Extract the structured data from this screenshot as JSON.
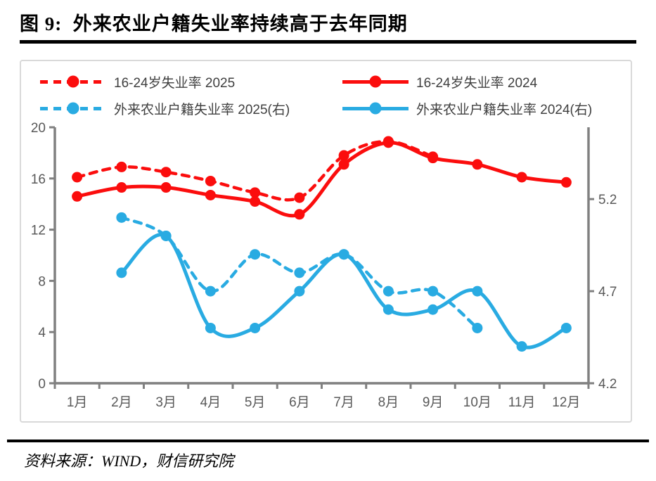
{
  "title": "图 9:  外来农业户籍失业率持续高于去年同期",
  "source": "资料来源：WIND，财信研究院",
  "colors": {
    "red": "#FB0D0D",
    "blue": "#29ABE2",
    "axis_line": "#808080",
    "axis_text": "#595959",
    "legend_text": "#404040",
    "card_border": "#d9d9d9",
    "rule": "#000000"
  },
  "chart_data": {
    "type": "line",
    "categories": [
      "1月",
      "2月",
      "3月",
      "4月",
      "5月",
      "6月",
      "7月",
      "8月",
      "9月",
      "10月",
      "11月",
      "12月"
    ],
    "left_axis": {
      "ticks": [
        0,
        4,
        8,
        12,
        16,
        20
      ],
      "range": [
        0,
        20
      ]
    },
    "right_axis": {
      "ticks": [
        4.2,
        4.7,
        5.2
      ],
      "tick_labels": [
        "4.2",
        "4.7",
        "5.2"
      ],
      "range": [
        4.2,
        5.59
      ]
    },
    "legend_position": "top-inside",
    "grid": false,
    "smooth_lines": true,
    "series": [
      {
        "name": "16-24岁失业率 2025",
        "axis": "left",
        "style": "dashed",
        "color": "#FB0D0D",
        "start_month": 1,
        "values": [
          16.1,
          16.9,
          16.5,
          15.8,
          14.9,
          14.5,
          17.8,
          18.9,
          17.7
        ]
      },
      {
        "name": "16-24岁失业率 2024",
        "axis": "left",
        "style": "solid",
        "color": "#FB0D0D",
        "start_month": 1,
        "values": [
          14.6,
          15.3,
          15.3,
          14.7,
          14.2,
          13.2,
          17.1,
          18.8,
          17.6,
          17.1,
          16.1,
          15.7
        ]
      },
      {
        "name": "外来农业户籍失业率 2025(右)",
        "axis": "right",
        "style": "dashed",
        "color": "#29ABE2",
        "start_month": 2,
        "values": [
          5.1,
          5.0,
          4.7,
          4.9,
          4.8,
          4.9,
          4.7,
          4.7,
          4.5
        ]
      },
      {
        "name": "外来农业户籍失业率 2024(右)",
        "axis": "right",
        "style": "solid",
        "color": "#29ABE2",
        "start_month": 2,
        "values": [
          4.8,
          5.0,
          4.5,
          4.5,
          4.7,
          4.9,
          4.6,
          4.6,
          4.7,
          4.4,
          4.5
        ]
      }
    ]
  }
}
